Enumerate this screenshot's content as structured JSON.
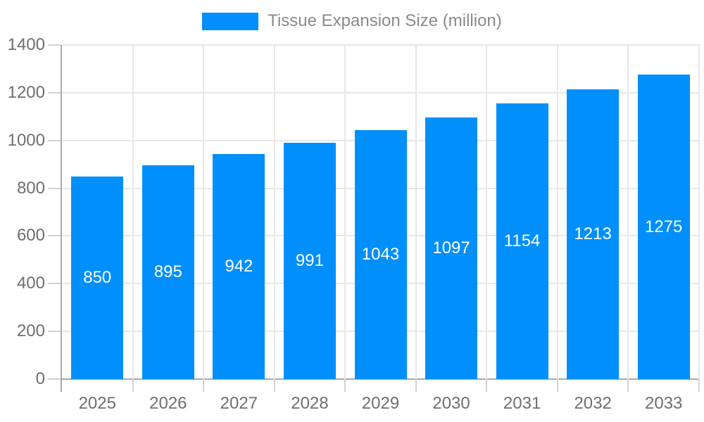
{
  "chart_data": {
    "type": "bar",
    "legend_label": "Tissue Expansion Size (million)",
    "series": [
      {
        "name": "Tissue Expansion Size (million)",
        "values": [
          850,
          895,
          942,
          991,
          1043,
          1097,
          1154,
          1213,
          1275
        ]
      }
    ],
    "categories": [
      "2025",
      "2026",
      "2027",
      "2028",
      "2029",
      "2030",
      "2031",
      "2032",
      "2033"
    ],
    "ylim": [
      0,
      1400
    ],
    "ytick_step": 200,
    "yticks": [
      0,
      200,
      400,
      600,
      800,
      1000,
      1200,
      1400
    ],
    "grid": true,
    "legend_position": "top",
    "value_labels": "inside-center",
    "colors": {
      "bar": "#008ffb",
      "value_label": "#ffffff",
      "axis_text": "#6f6f6f",
      "legend_text": "#8a8a8a",
      "grid": "#e7e7e7",
      "axis_line": "#a9a9a9",
      "tick": "#d2d2d2"
    }
  }
}
